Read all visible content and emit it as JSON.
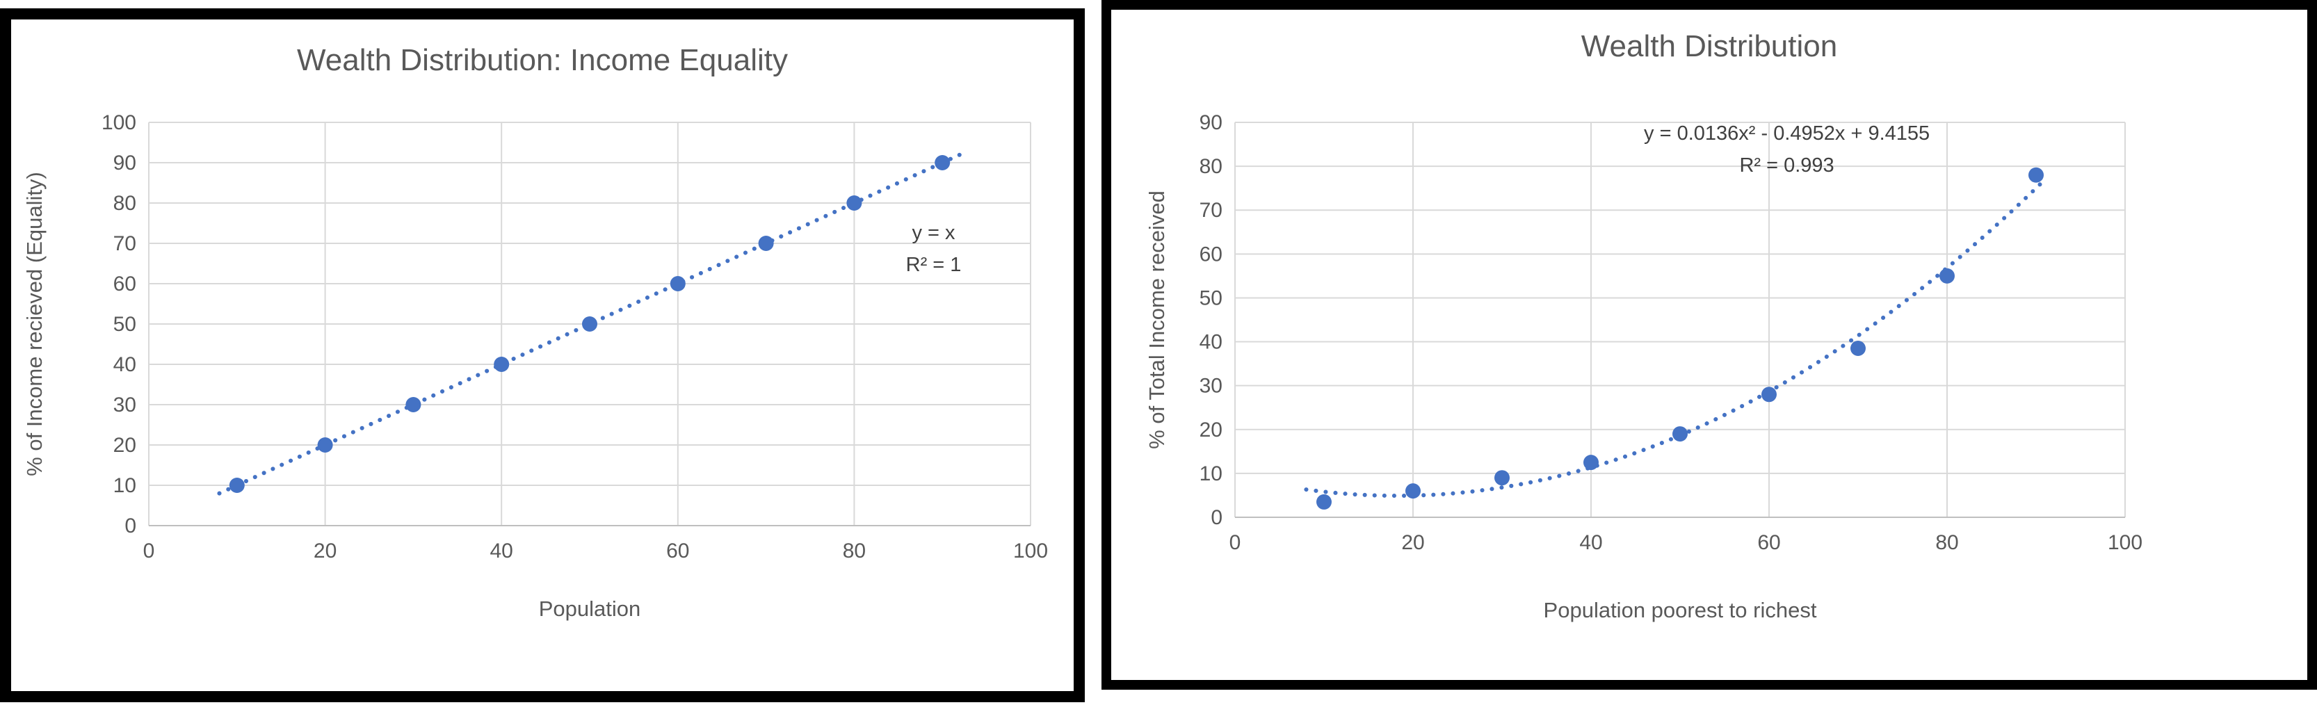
{
  "page": {
    "background": "#ffffff"
  },
  "colors": {
    "point": "#4472C4",
    "trendline": "#4472C4",
    "gridline": "#D9D9D9",
    "axis_line": "#BFBFBF",
    "text": "#595959",
    "annotation": "#404040",
    "panel_border": "#000000"
  },
  "chart_data": [
    {
      "type": "scatter",
      "title": "Wealth Distribution: Income Equality",
      "xlabel": "Population",
      "ylabel": "% of Income recieved (Equality)",
      "xlim": [
        0,
        100
      ],
      "ylim": [
        0,
        100
      ],
      "x_ticks": [
        0,
        20,
        40,
        60,
        80,
        100
      ],
      "y_ticks": [
        0,
        10,
        20,
        30,
        40,
        50,
        60,
        70,
        80,
        90,
        100
      ],
      "grid": true,
      "legend": "none",
      "points": [
        [
          10,
          10
        ],
        [
          20,
          20
        ],
        [
          30,
          30
        ],
        [
          40,
          40
        ],
        [
          50,
          50
        ],
        [
          60,
          60
        ],
        [
          70,
          70
        ],
        [
          80,
          80
        ],
        [
          90,
          90
        ]
      ],
      "trendline": {
        "style": "dotted",
        "a": 0,
        "b": 1,
        "c": 0,
        "x_start": 8,
        "x_end": 92
      },
      "annotation": {
        "lines": [
          "y = x",
          "R² = 1"
        ],
        "x": 89,
        "y": 71
      }
    },
    {
      "type": "scatter",
      "title": "Wealth Distribution",
      "xlabel": "Population poorest to richest",
      "ylabel": "% of Total Income received",
      "xlim": [
        0,
        100
      ],
      "ylim": [
        0,
        90
      ],
      "x_ticks": [
        0,
        20,
        40,
        60,
        80,
        100
      ],
      "y_ticks": [
        0,
        10,
        20,
        30,
        40,
        50,
        60,
        70,
        80,
        90
      ],
      "grid": true,
      "legend": "none",
      "points": [
        [
          10,
          3.5
        ],
        [
          20,
          6
        ],
        [
          30,
          9
        ],
        [
          40,
          12.5
        ],
        [
          50,
          19
        ],
        [
          60,
          28
        ],
        [
          70,
          38.5
        ],
        [
          80,
          55
        ],
        [
          90,
          78
        ]
      ],
      "trendline": {
        "style": "dotted",
        "a": 0.0136,
        "b": -0.4952,
        "c": 9.4155,
        "x_start": 8,
        "x_end": 91
      },
      "annotation": {
        "lines": [
          "y = 0.0136x² - 0.4952x + 9.4155",
          "R² = 0.993"
        ],
        "x": 62,
        "y": 86
      }
    }
  ]
}
